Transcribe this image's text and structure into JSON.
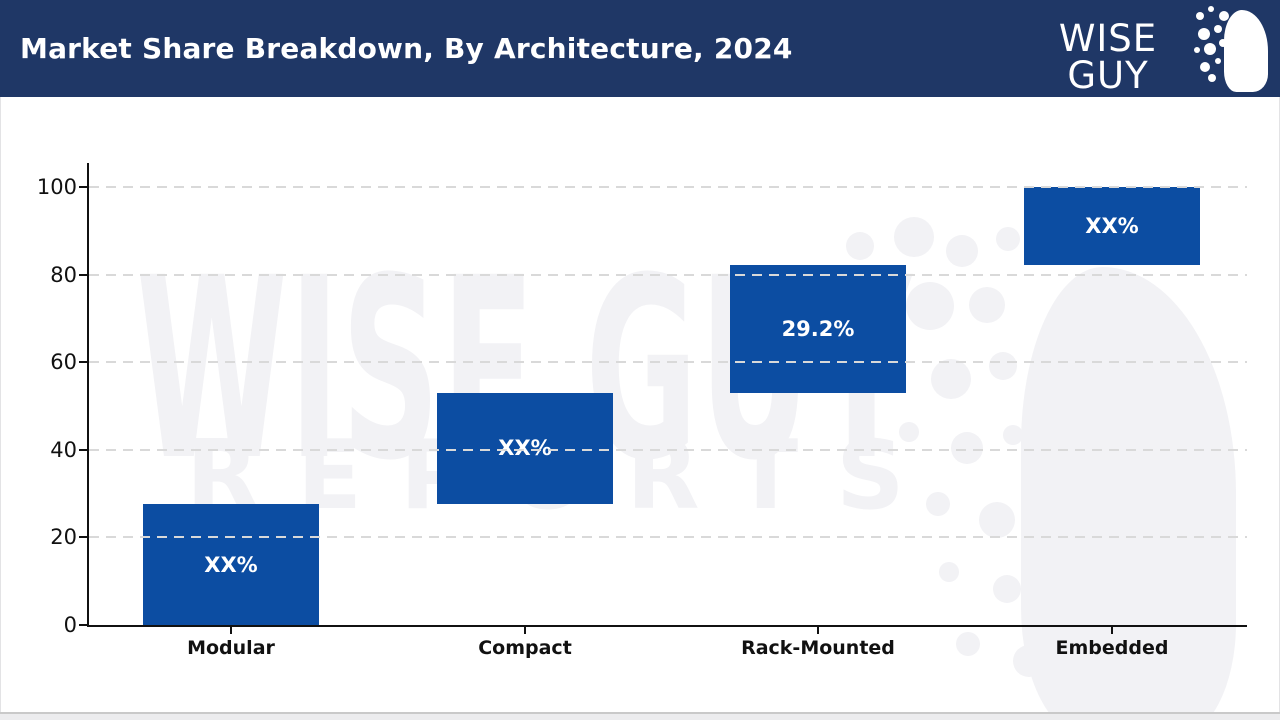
{
  "header": {
    "title": "Market Share Breakdown, By Architecture, 2024",
    "brand": {
      "name": "WISE GUY",
      "tagline": "REPORTS"
    }
  },
  "watermark": {
    "name": "WISE GUY",
    "tagline": "REPORTS"
  },
  "chart_data": {
    "type": "bar",
    "subtype": "waterfall",
    "title": "Market Share Breakdown, By Architecture, 2024",
    "categories": [
      "Modular",
      "Compact",
      "Rack-Mounted",
      "Embedded"
    ],
    "bars": [
      {
        "category": "Modular",
        "start": 0,
        "end": 27.6,
        "size": 27.6,
        "label": "XX%"
      },
      {
        "category": "Compact",
        "start": 27.6,
        "end": 53.0,
        "size": 25.4,
        "label": "XX%"
      },
      {
        "category": "Rack-Mounted",
        "start": 53.0,
        "end": 82.2,
        "size": 29.2,
        "label": "29.2%"
      },
      {
        "category": "Embedded",
        "start": 82.2,
        "end": 100.0,
        "size": 17.8,
        "label": "XX%"
      }
    ],
    "y_axis": {
      "ticks": [
        0,
        20,
        40,
        60,
        80,
        100
      ],
      "range": [
        0,
        105
      ]
    },
    "x_label": "",
    "y_label": "",
    "grid": {
      "horizontal": true,
      "style": "dashed"
    },
    "legend": "none",
    "colors": {
      "bar": "#0C4DA2",
      "bar_label": "#FFFFFF",
      "header_bg": "#1F3766",
      "grid": "#D9D9D9",
      "axis": "#111111",
      "watermark": "#F2F2F5"
    }
  }
}
